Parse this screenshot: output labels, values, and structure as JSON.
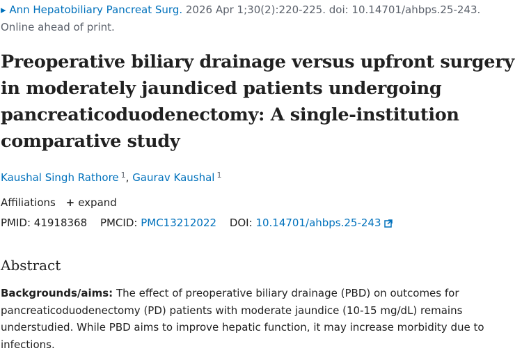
{
  "citation": {
    "journal": "Ann Hepatobiliary Pancreat Surg.",
    "details": "2026 Apr 1;30(2):220-225. doi: 10.14701/ahbps.25-243.",
    "status": "Online ahead of print."
  },
  "title": "Preoperative biliary drainage versus upfront surgery in moderately jaundiced patients undergoing pancreaticoduodenectomy: A single-institution comparative study",
  "authors": [
    {
      "name": "Kaushal Singh Rathore",
      "affiliation": "1"
    },
    {
      "name": "Gaurav Kaushal",
      "affiliation": "1"
    }
  ],
  "affiliations": {
    "label": "Affiliations",
    "expand_label": "expand"
  },
  "identifiers": {
    "pmid_label": "PMID:",
    "pmid": "41918368",
    "pmcid_label": "PMCID:",
    "pmcid": "PMC13212022",
    "doi_label": "DOI:",
    "doi": "10.14701/ahbps.25-243"
  },
  "abstract": {
    "heading": "Abstract",
    "section_label": "Backgrounds/aims:",
    "section_text": "The effect of preoperative biliary drainage (PBD) on outcomes for pancreaticoduodenectomy (PD) patients with moderate jaundice (10-15 mg/dL) remains understudied. While PBD aims to improve hepatic function, it may increase morbidity due to infections."
  },
  "icons": {
    "plus": "plus-icon",
    "external_link": "external-link-icon"
  },
  "colors": {
    "link": "#0071bc",
    "text": "#212121",
    "muted": "#5b616b"
  }
}
